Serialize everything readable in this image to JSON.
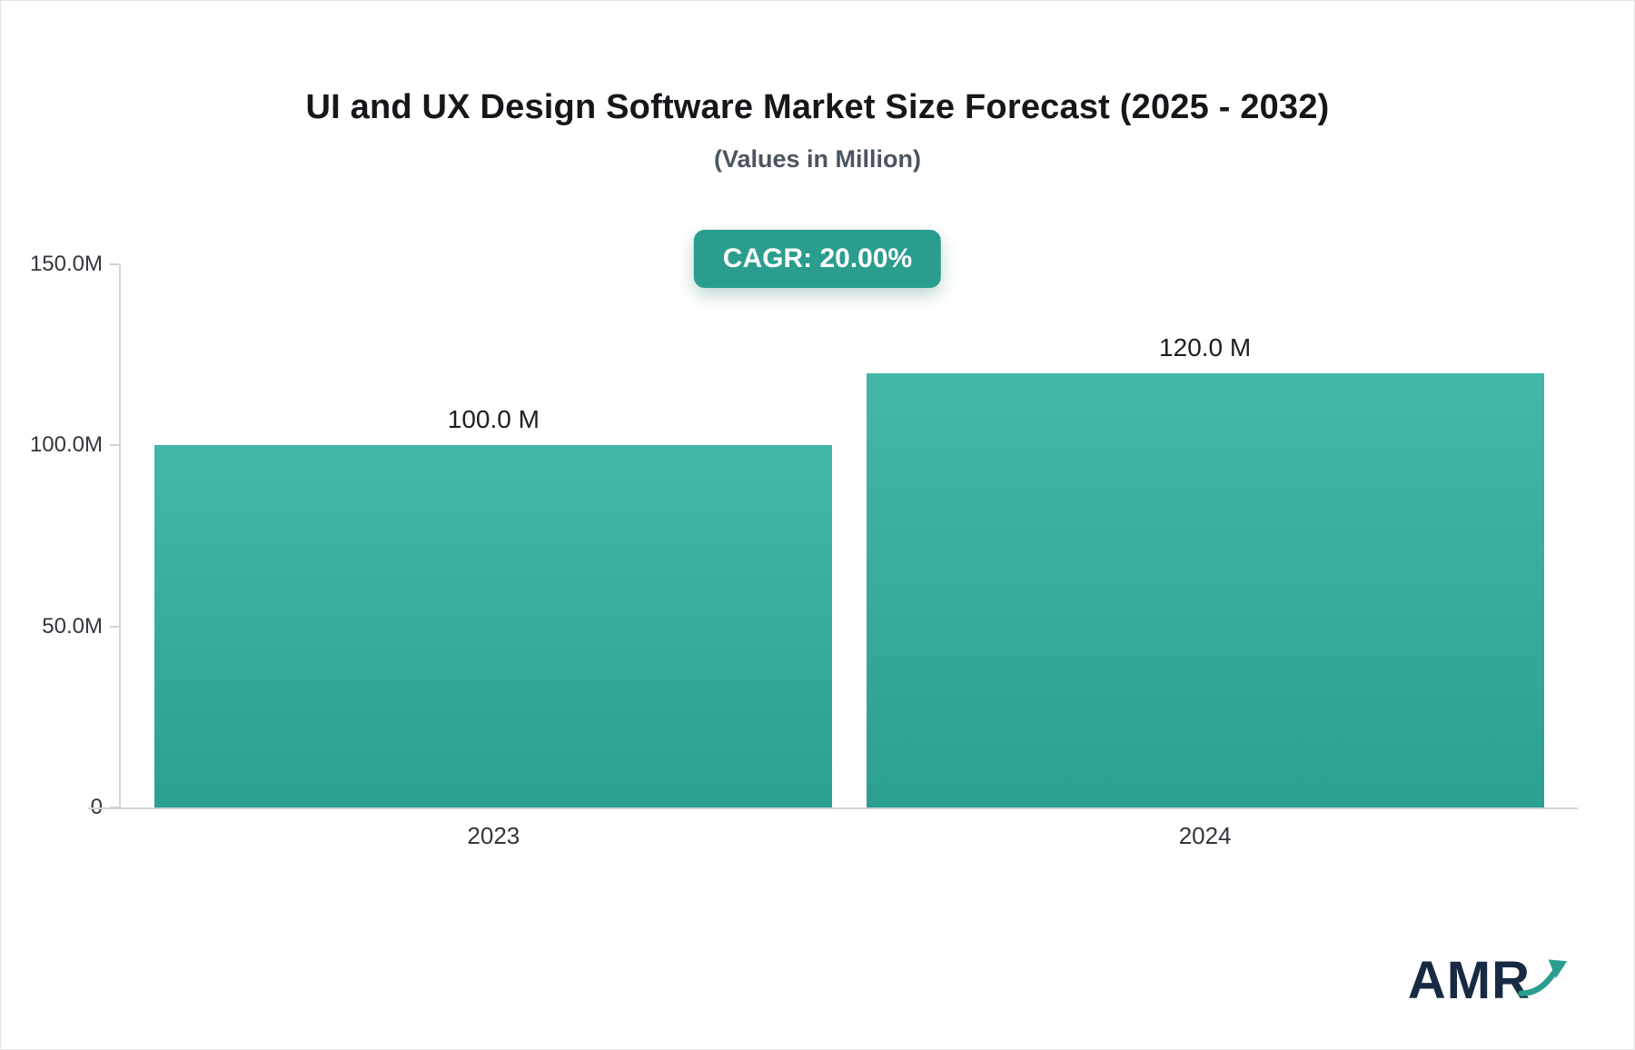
{
  "chart": {
    "title": "UI and UX Design Software Market Size Forecast (2025 - 2032)",
    "subtitle": "(Values in Million)",
    "cagr_label": "CAGR: 20.00%"
  },
  "chart_data": {
    "type": "bar",
    "title": "UI and UX Design Software Market Size Forecast (2025 - 2032)",
    "subtitle": "(Values in Million)",
    "cagr_label": "CAGR: 20.00%",
    "categories": [
      "2023",
      "2024"
    ],
    "values": [
      100.0,
      120.0
    ],
    "value_labels": [
      "100.0 M",
      "120.0 M"
    ],
    "unit": "Million",
    "xlabel": "",
    "ylabel": "",
    "ylim": [
      0,
      150
    ],
    "ytick_labels": [
      "150.0M",
      "100.0M",
      "50.0M",
      "0"
    ],
    "grid": false,
    "legend": false,
    "bar_color_top": "#43b7a9",
    "bar_color_bottom": "#2ba092",
    "accent_color": "#2a9d8f"
  },
  "branding": {
    "logo_text": "AMR"
  }
}
